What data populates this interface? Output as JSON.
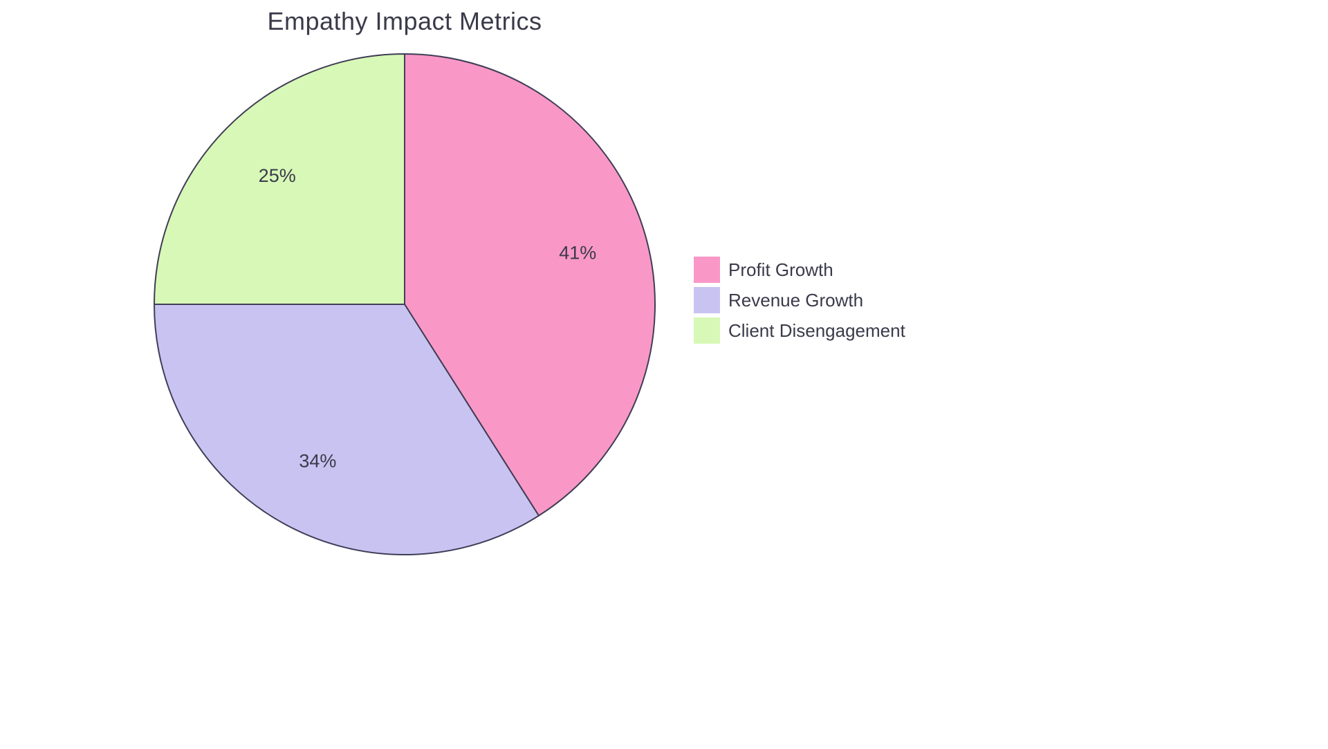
{
  "chart_data": {
    "type": "pie",
    "title": "Empathy Impact Metrics",
    "labels": [
      "Profit Growth",
      "Revenue Growth",
      "Client Disengagement"
    ],
    "values": [
      41,
      34,
      25
    ],
    "percent_labels": [
      "41%",
      "34%",
      "25%"
    ],
    "colors": [
      "#F998C6",
      "#C9C3F2",
      "#D8F8B7"
    ],
    "stroke_color": "#3F3D56",
    "text_color": "#3A3A4A",
    "start_angle_deg": -90,
    "direction": "clockwise",
    "legend_position": "right"
  }
}
